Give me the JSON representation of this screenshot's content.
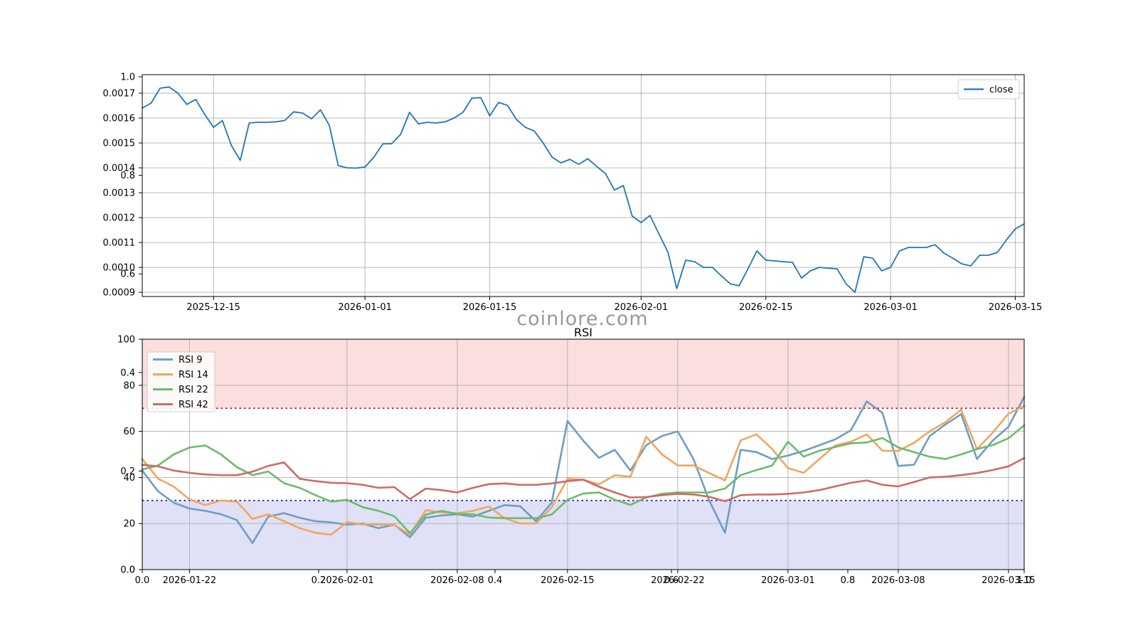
{
  "watermark": "coinlore.com",
  "colors": {
    "background": "#ffffff",
    "grid": "#b0b0b0",
    "axis_frame": "#000000",
    "tick_text": "#000000",
    "watermark_text": "#999999",
    "close_line": "#1f77b4",
    "rsi9_line": "#6e9ec4",
    "rsi14_line": "#f2a65e",
    "rsi22_line": "#6cbb6c",
    "rsi42_line": "#d06a66",
    "overbought_band": "#fbdede",
    "oversold_band": "#e0e0f6",
    "overbought_dotted": "#c42033",
    "oversold_dotted": "#2222c4"
  },
  "overlay_axis": {
    "x_tick_labels": [
      "0.0",
      "0.2",
      "0.4",
      "0.6",
      "0.8",
      "1.0"
    ],
    "y_tick_labels": [
      "1.0",
      "0.8",
      "0.6",
      "0.4",
      "0.2",
      "0.0"
    ]
  },
  "chart_data": [
    {
      "type": "line",
      "title": "",
      "x_unit": "date (daily)",
      "x_start": "2025-12-07",
      "x_end": "2026-03-16",
      "x_tick_labels": [
        "2025-12-15",
        "2026-01-01",
        "2026-01-15",
        "2026-02-01",
        "2026-02-15",
        "2026-03-01",
        "2026-03-15"
      ],
      "x_tick_indices": [
        8,
        25,
        39,
        56,
        70,
        84,
        98
      ],
      "y_tick_labels": [
        "0.0009",
        "0.0010",
        "0.0011",
        "0.0012",
        "0.0013",
        "0.0014",
        "0.0015",
        "0.0016",
        "0.0017"
      ],
      "y_ticks": [
        0.0009,
        0.001,
        0.0011,
        0.0012,
        0.0013,
        0.0014,
        0.0015,
        0.0016,
        0.0017
      ],
      "ylim": [
        0.000883,
        0.0017743
      ],
      "grid": true,
      "legend_position": "upper right",
      "series": [
        {
          "name": "close",
          "color": "#1f77b4",
          "values": [
            0.00164,
            0.00166,
            0.00172,
            0.001725,
            0.0017,
            0.001655,
            0.001675,
            0.001615,
            0.001563,
            0.00159,
            0.00149,
            0.00143,
            0.00158,
            0.001583,
            0.001583,
            0.001585,
            0.00159,
            0.001625,
            0.00162,
            0.001597,
            0.001633,
            0.001571,
            0.001409,
            0.0014,
            0.001399,
            0.001403,
            0.001443,
            0.001496,
            0.001497,
            0.001534,
            0.001623,
            0.001577,
            0.001583,
            0.00158,
            0.001585,
            0.0016,
            0.001623,
            0.00168,
            0.001682,
            0.001609,
            0.001663,
            0.001651,
            0.001594,
            0.001563,
            0.001548,
            0.0015,
            0.001443,
            0.00142,
            0.001434,
            0.001414,
            0.001437,
            0.001406,
            0.001377,
            0.001311,
            0.001329,
            0.001206,
            0.00118,
            0.001209,
            0.001134,
            0.001062,
            0.000915,
            0.001029,
            0.001023,
            0.001,
            0.001,
            0.000966,
            0.000934,
            0.000926,
            0.000995,
            0.001066,
            0.001029,
            0.001026,
            0.001023,
            0.00102,
            0.000957,
            0.000986,
            0.001,
            0.000997,
            0.000994,
            0.000934,
            0.0009,
            0.001043,
            0.001037,
            0.000986,
            0.001,
            0.001066,
            0.00108,
            0.00108,
            0.00108,
            0.001091,
            0.001057,
            0.001037,
            0.001014,
            0.001006,
            0.001049,
            0.001049,
            0.00106,
            0.00111,
            0.001155,
            0.001175
          ]
        }
      ]
    },
    {
      "type": "line",
      "title": "RSI",
      "x_unit": "date (daily)",
      "x_start": "2026-01-19",
      "x_end": "2026-03-16",
      "x_tick_labels": [
        "2026-01-22",
        "2026-02-01",
        "2026-02-08",
        "2026-02-15",
        "2026-02-22",
        "2026-03-01",
        "2026-03-08",
        "2026-03-15"
      ],
      "x_tick_indices": [
        3,
        13,
        20,
        27,
        34,
        41,
        48,
        55
      ],
      "y_tick_labels": [
        "0",
        "20",
        "40",
        "60",
        "80",
        "100"
      ],
      "y_ticks": [
        0,
        20,
        40,
        60,
        80,
        100
      ],
      "ylim": [
        0,
        100
      ],
      "grid": true,
      "legend_position": "upper left",
      "overbought_level": 70,
      "oversold_level": 30,
      "bands": [
        {
          "from": 70,
          "to": 100,
          "color": "#fbdede",
          "meaning": "overbought zone"
        },
        {
          "from": 0,
          "to": 30,
          "color": "#e0e0f6",
          "meaning": "oversold zone"
        }
      ],
      "threshold_lines": [
        {
          "value": 70,
          "color": "#c42033",
          "style": "dotted"
        },
        {
          "value": 30,
          "color": "#2222c4",
          "style": "dotted"
        }
      ],
      "series": [
        {
          "name": "RSI 9",
          "color": "#6e9ec4",
          "values": [
            43,
            34,
            29,
            26.5,
            25.5,
            24,
            21.5,
            11.5,
            23,
            24.5,
            22.5,
            21,
            20.5,
            19.5,
            20,
            18,
            19.5,
            14,
            22.5,
            23.5,
            24,
            23,
            25.5,
            28,
            27.5,
            21,
            29,
            64.5,
            56,
            48.5,
            52,
            43,
            54,
            58,
            60,
            48,
            30,
            16,
            52,
            51,
            48,
            49.5,
            51.5,
            54,
            56.5,
            60.5,
            73,
            68,
            45,
            45.5,
            58,
            63,
            67.5,
            48,
            56,
            62,
            75
          ]
        },
        {
          "name": "RSI 14",
          "color": "#f2a65e",
          "values": [
            48,
            39.5,
            36,
            30.5,
            28,
            30,
            29.5,
            22,
            24,
            21,
            18,
            16,
            15.2,
            20.6,
            19.6,
            19.6,
            19.4,
            15.2,
            25.8,
            24.8,
            24.5,
            25.5,
            27.4,
            22.3,
            20,
            20,
            27,
            39.4,
            39,
            37,
            41,
            40.3,
            57.7,
            50,
            45.2,
            45.2,
            41.9,
            38.7,
            56.1,
            58.7,
            52.3,
            44,
            42,
            48,
            53.9,
            55.5,
            58.7,
            51.6,
            51.5,
            55,
            60,
            64,
            69.4,
            52.3,
            59.4,
            67.7,
            71
          ]
        },
        {
          "name": "RSI 22",
          "color": "#6cbb6c",
          "values": [
            43.5,
            45.2,
            50,
            53,
            53.9,
            50,
            44.5,
            41,
            42.6,
            37.5,
            35.5,
            32.3,
            29.5,
            30.3,
            27.1,
            25.5,
            23.2,
            15.8,
            23.9,
            25.5,
            24.2,
            24,
            22.6,
            22.3,
            22.3,
            22.3,
            23.9,
            30.3,
            33,
            33.5,
            30.3,
            28.1,
            31.3,
            32.9,
            33.5,
            33.5,
            33.5,
            35.2,
            41,
            43.2,
            45.2,
            55.5,
            49,
            51.6,
            53.2,
            54.8,
            55.2,
            57.1,
            53,
            51,
            49,
            48,
            50,
            52.3,
            54,
            57,
            62.6
          ]
        },
        {
          "name": "RSI 42",
          "color": "#d06a66",
          "values": [
            45.5,
            44.8,
            43,
            42,
            41.3,
            41,
            41,
            42.5,
            45,
            46.5,
            39.4,
            38.4,
            37.7,
            37.5,
            36.8,
            35.5,
            35.8,
            30.6,
            35.2,
            34.5,
            33.5,
            35.5,
            37.1,
            37.4,
            36.8,
            36.8,
            37.4,
            38.4,
            39,
            36,
            33.5,
            31.3,
            31.5,
            32.3,
            32.9,
            32.6,
            31.6,
            29.7,
            32.3,
            32.6,
            32.6,
            32.9,
            33.5,
            34.5,
            36.1,
            37.7,
            38.7,
            36.8,
            36.1,
            38,
            40,
            40.3,
            41,
            41.9,
            43.2,
            44.8,
            48.4
          ]
        }
      ]
    }
  ]
}
